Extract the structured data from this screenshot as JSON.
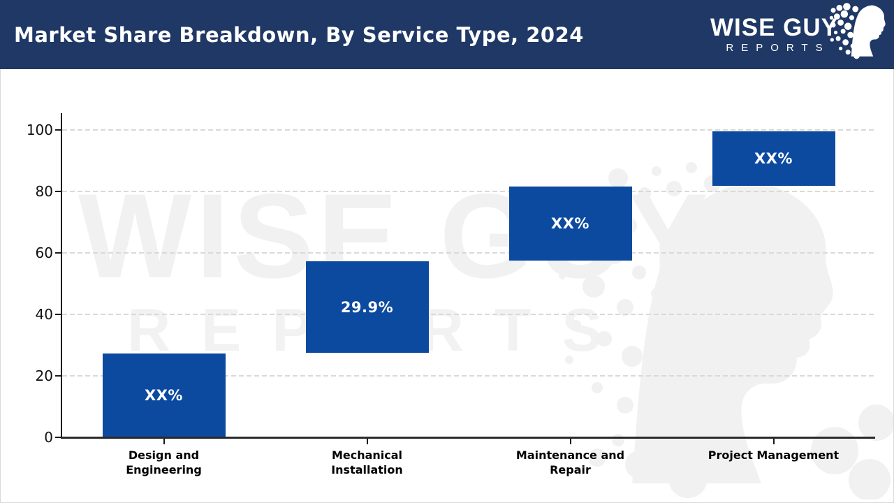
{
  "header": {
    "title": "Market Share Breakdown, By Service Type, 2024",
    "logo": {
      "line1": "WISE GUY",
      "line2": "REPORTS"
    }
  },
  "watermark": {
    "line1": "WISE GUY",
    "line2": "REPORTS"
  },
  "colors": {
    "header_navy": "#1f3865",
    "bar_blue": "#0c4aa0",
    "grid_gray": "#d9d9d9",
    "watermark_gray": "#f1f1f1",
    "bar_label_white": "#ffffff"
  },
  "chart_data": {
    "type": "bar",
    "variant": "waterfall-floating-bars",
    "title": "Market Share Breakdown, By Service Type, 2024",
    "categories": [
      "Design and\nEngineering",
      "Mechanical\nInstallation",
      "Maintenance and\nRepair",
      "Project Management"
    ],
    "bars": [
      {
        "label": "XX%",
        "start": 0,
        "end": 27.2
      },
      {
        "label": "29.9%",
        "start": 27.3,
        "end": 57.2
      },
      {
        "label": "XX%",
        "start": 57.3,
        "end": 81.5
      },
      {
        "label": "XX%",
        "start": 81.6,
        "end": 99.5
      }
    ],
    "yticks": [
      0,
      20,
      40,
      60,
      80,
      100
    ],
    "ylim": [
      0,
      105
    ],
    "xlabel": "",
    "ylabel": "",
    "grid": "horizontal-dashed",
    "legend": "none"
  }
}
